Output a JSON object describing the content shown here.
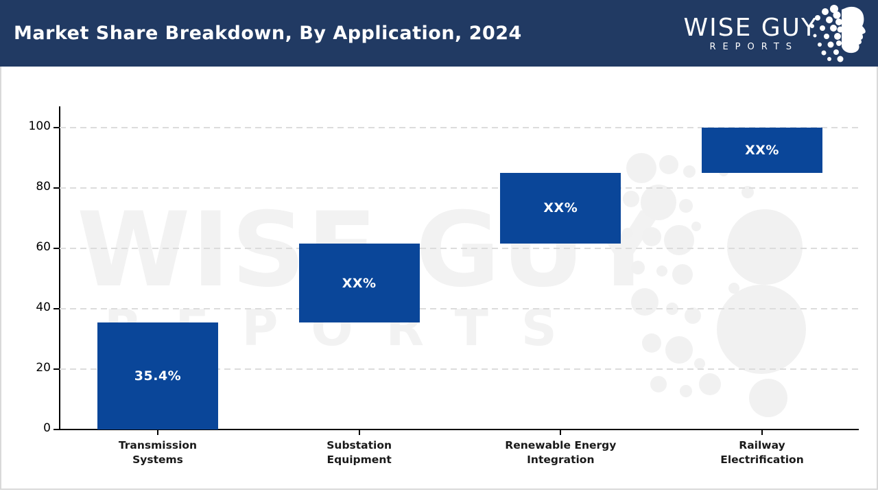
{
  "header": {
    "title": "Market Share Breakdown, By Application, 2024",
    "logo": {
      "line1": "WISE GUY",
      "line2": "REPORTS"
    }
  },
  "watermark": {
    "line1": "WISE GUY",
    "line2": "REPORTS"
  },
  "colors": {
    "header_bg": "#213A63",
    "bar": "#0A4699",
    "title_text": "#FFFFFF",
    "bar_label_text": "#FFFFFF",
    "axis": "#000000",
    "gridline": "#DCDCDC",
    "watermark": "#F2F2F2",
    "frame_border": "#D9D9D9"
  },
  "chart_data": {
    "type": "bar",
    "subtype": "waterfall",
    "title": "Market Share Breakdown, By Application, 2024",
    "xlabel": "",
    "ylabel": "",
    "ylim": [
      0,
      105
    ],
    "yticks": [
      0,
      20,
      40,
      60,
      80,
      100
    ],
    "grid": "horizontal-dashed",
    "legend": "none",
    "categories": [
      [
        "Transmission",
        "Systems"
      ],
      [
        "Substation",
        "Equipment"
      ],
      [
        "Renewable Energy",
        "Integration"
      ],
      [
        "Railway",
        "Electrification"
      ]
    ],
    "segments": [
      {
        "start": 0,
        "end": 35.4,
        "label": "35.4%"
      },
      {
        "start": 35.4,
        "end": 61.6,
        "label": "XX%"
      },
      {
        "start": 61.6,
        "end": 85.0,
        "label": "XX%"
      },
      {
        "start": 85.0,
        "end": 100.0,
        "label": "XX%"
      }
    ]
  }
}
